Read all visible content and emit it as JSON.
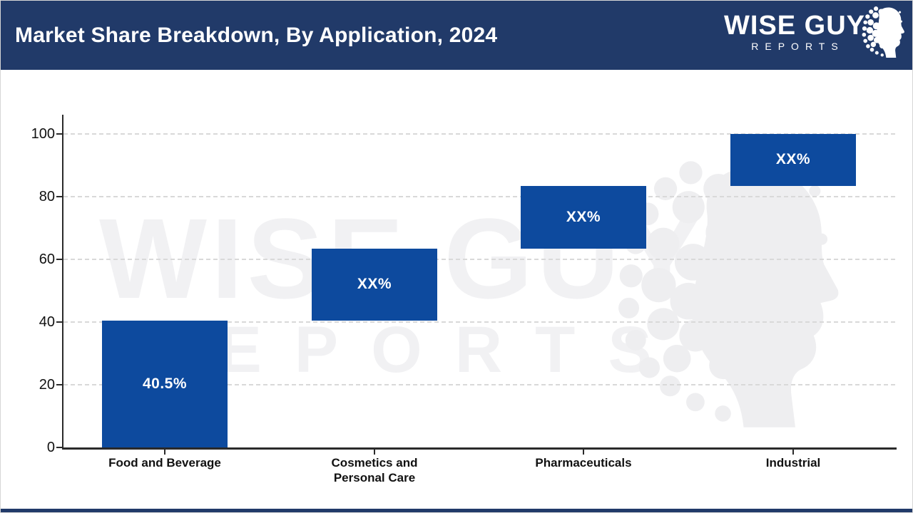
{
  "header": {
    "title": "Market Share Breakdown, By Application, 2024",
    "logo": {
      "line1": "WISE GUY",
      "line2": "REPORTS"
    }
  },
  "watermark": {
    "line1": "WISE GUY",
    "line2": "REPORTS"
  },
  "chart_data": {
    "type": "bar",
    "subtype": "floating-segment-waterfall",
    "title": "Market Share Breakdown, By Application, 2024",
    "categories": [
      "Food and Beverage",
      "Cosmetics and Personal Care",
      "Pharmaceuticals",
      "Industrial"
    ],
    "category_label_lines": [
      [
        "Food and Beverage"
      ],
      [
        "Cosmetics and",
        "Personal Care"
      ],
      [
        "Pharmaceuticals"
      ],
      [
        "Industrial"
      ]
    ],
    "segments": [
      {
        "category": "Food and Beverage",
        "start": 0,
        "end": 40.5,
        "label": "40.5%"
      },
      {
        "category": "Cosmetics and Personal Care",
        "start": 40.5,
        "end": 63.5,
        "label": "XX%"
      },
      {
        "category": "Pharmaceuticals",
        "start": 63.5,
        "end": 83.5,
        "label": "XX%"
      },
      {
        "category": "Industrial",
        "start": 83.5,
        "end": 100,
        "label": "XX%"
      }
    ],
    "yticks": [
      0,
      20,
      40,
      60,
      80,
      100
    ],
    "ylim": [
      0,
      106
    ],
    "xlabel": "",
    "ylabel": "",
    "grid": "horizontal-dashed",
    "legend": "none",
    "colors": {
      "bar": "#0d4a9e",
      "header_bg": "#213a69",
      "footer_bg": "#213a69",
      "grid": "#d9d9d9",
      "axis": "#2a2a2a",
      "bar_label_text": "#ffffff",
      "watermark": "#f1f1f3"
    }
  }
}
